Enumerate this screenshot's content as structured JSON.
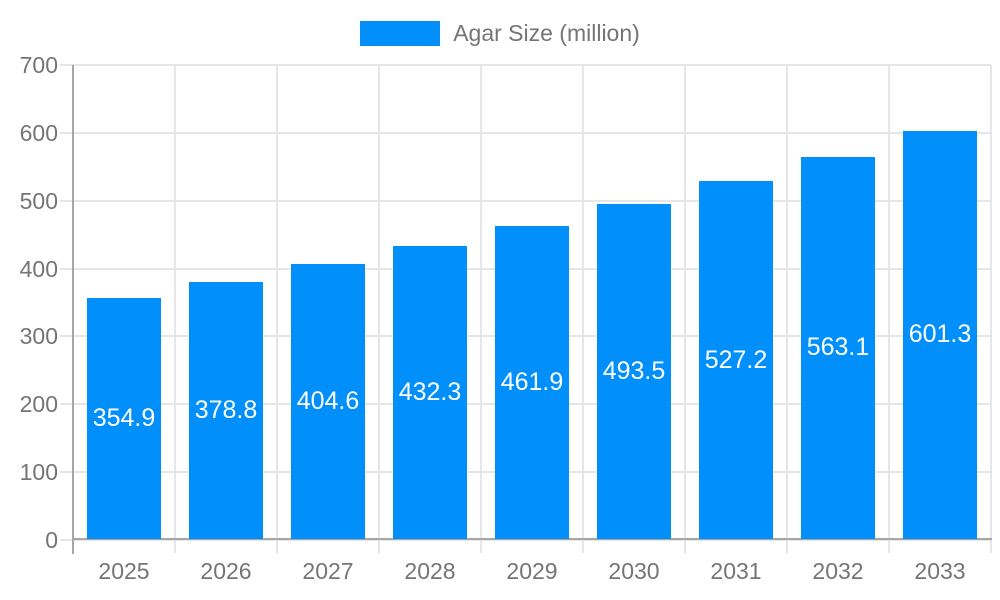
{
  "legend": {
    "label": "Agar Size (million)"
  },
  "chart_data": {
    "type": "bar",
    "title": "",
    "xlabel": "",
    "ylabel": "",
    "categories": [
      "2025",
      "2026",
      "2027",
      "2028",
      "2029",
      "2030",
      "2031",
      "2032",
      "2033"
    ],
    "series": [
      {
        "name": "Agar Size (million)",
        "values": [
          354.9,
          378.8,
          404.6,
          432.3,
          461.9,
          493.5,
          527.2,
          563.1,
          601.3
        ]
      }
    ],
    "value_labels": [
      "354.9",
      "378.8",
      "404.6",
      "432.3",
      "461.9",
      "493.5",
      "527.2",
      "563.1",
      "601.3"
    ],
    "ylim": [
      0,
      700
    ],
    "yticks": [
      0,
      100,
      200,
      300,
      400,
      500,
      600,
      700
    ],
    "grid": true,
    "legend_position": "top",
    "colors": {
      "bar": "#008FFB",
      "axis": "#a6a6a6",
      "grid": "#e6e6e6",
      "tick_label": "#757575",
      "value_label": "#ffffff"
    }
  }
}
